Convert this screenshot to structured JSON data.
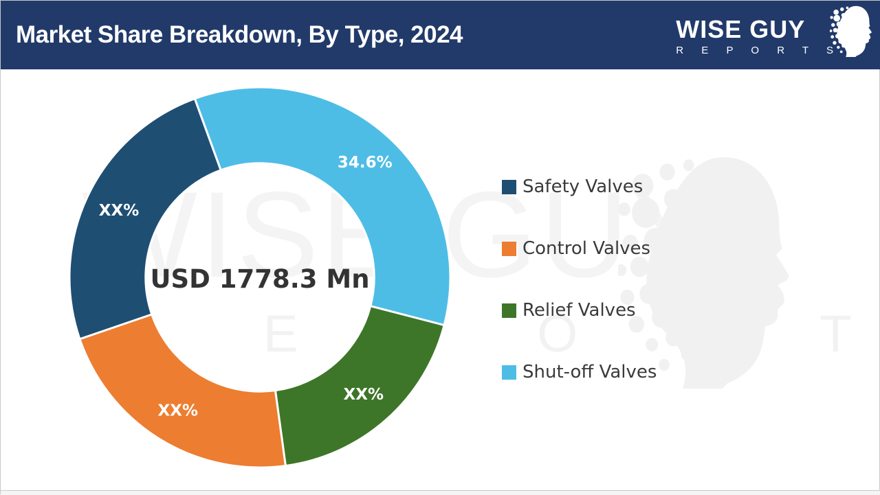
{
  "header": {
    "title": "Market Share Breakdown, By Type, 2024",
    "logo": {
      "name": "WISE GUY",
      "subname": "R E P O R T S"
    }
  },
  "watermark": {
    "line1": "WISE GUY",
    "line2": "R E P O R T S"
  },
  "chart_data": {
    "type": "pie",
    "variant": "donut",
    "title": "Market Share Breakdown, By Type, 2024",
    "center_label": "USD 1778.3 Mn",
    "start_angle_deg": 110,
    "direction": "clockwise",
    "inner_radius_ratio": 0.6,
    "segments": [
      {
        "name": "Shut-off Valves",
        "value_pct": 34.6,
        "label": "34.6%",
        "color": "#4ebde6"
      },
      {
        "name": "Relief Valves",
        "value_pct": 18.8,
        "label": "XX%",
        "color": "#3d7628"
      },
      {
        "name": "Control Valves",
        "value_pct": 21.9,
        "label": "XX%",
        "color": "#ed7d31"
      },
      {
        "name": "Safety Valves",
        "value_pct": 24.7,
        "label": "XX%",
        "color": "#1f4e73"
      }
    ],
    "legend": [
      {
        "label": "Safety Valves",
        "color": "#1f4e73"
      },
      {
        "label": "Control Valves",
        "color": "#ed7d31"
      },
      {
        "label": "Relief Valves",
        "color": "#3d7628"
      },
      {
        "label": "Shut-off Valves",
        "color": "#4ebde6"
      }
    ],
    "legend_position": "right"
  },
  "colors": {
    "header_bg": "#213a6a",
    "page_bg": "#ffffff",
    "frame_border": "#c9c9c9",
    "legend_text": "#3a3a3a",
    "center_text": "#333333",
    "watermark": "#f2f2f3",
    "segment_gap_stroke": "#ffffff"
  }
}
